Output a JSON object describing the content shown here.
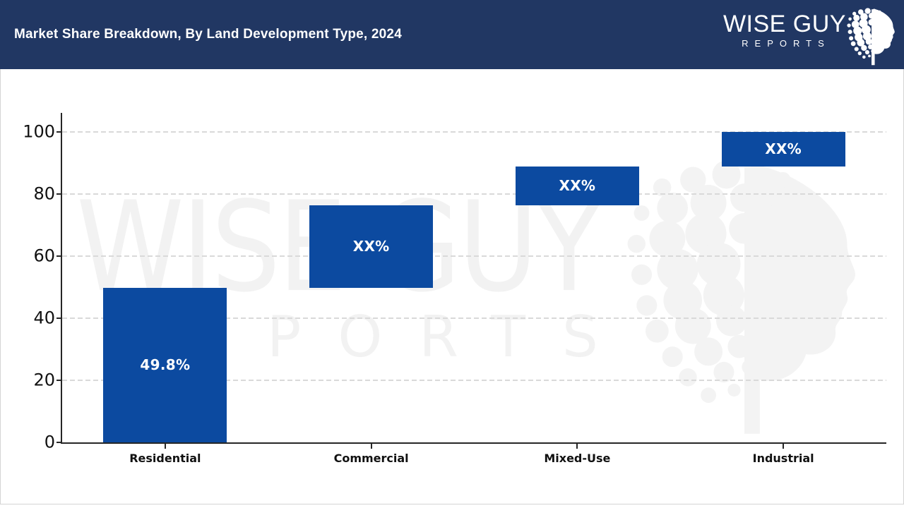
{
  "header": {
    "title": "Market Share Breakdown, By Land Development Type, 2024",
    "logo_primary": "WISE GUY",
    "logo_secondary": "REPORTS",
    "header_bg": "#213763",
    "text_color": "#ffffff"
  },
  "watermark": {
    "line1": "WISE GUY",
    "line2": "REPORTS"
  },
  "chart_data": {
    "type": "bar",
    "subtype": "waterfall-breakdown",
    "title": "Market Share Breakdown, By Land Development Type, 2024",
    "categories": [
      "Residential",
      "Commercial",
      "Mixed-Use",
      "Industrial"
    ],
    "segments": [
      {
        "category": "Residential",
        "start": 0,
        "end": 49.8,
        "label": "49.8%"
      },
      {
        "category": "Commercial",
        "start": 49.8,
        "end": 76.4,
        "label": "XX%"
      },
      {
        "category": "Mixed-Use",
        "start": 76.4,
        "end": 88.9,
        "label": "XX%"
      },
      {
        "category": "Industrial",
        "start": 88.9,
        "end": 100,
        "label": "XX%"
      }
    ],
    "yticks": [
      0,
      20,
      40,
      60,
      80,
      100
    ],
    "ylim": [
      0,
      106
    ],
    "xlabel": "",
    "ylabel": "",
    "legend": "none",
    "grid": "horizontal-dashed",
    "bar_color": "#0c4aa0",
    "grid_color": "#d9d9d9",
    "axis_color": "#262626"
  }
}
